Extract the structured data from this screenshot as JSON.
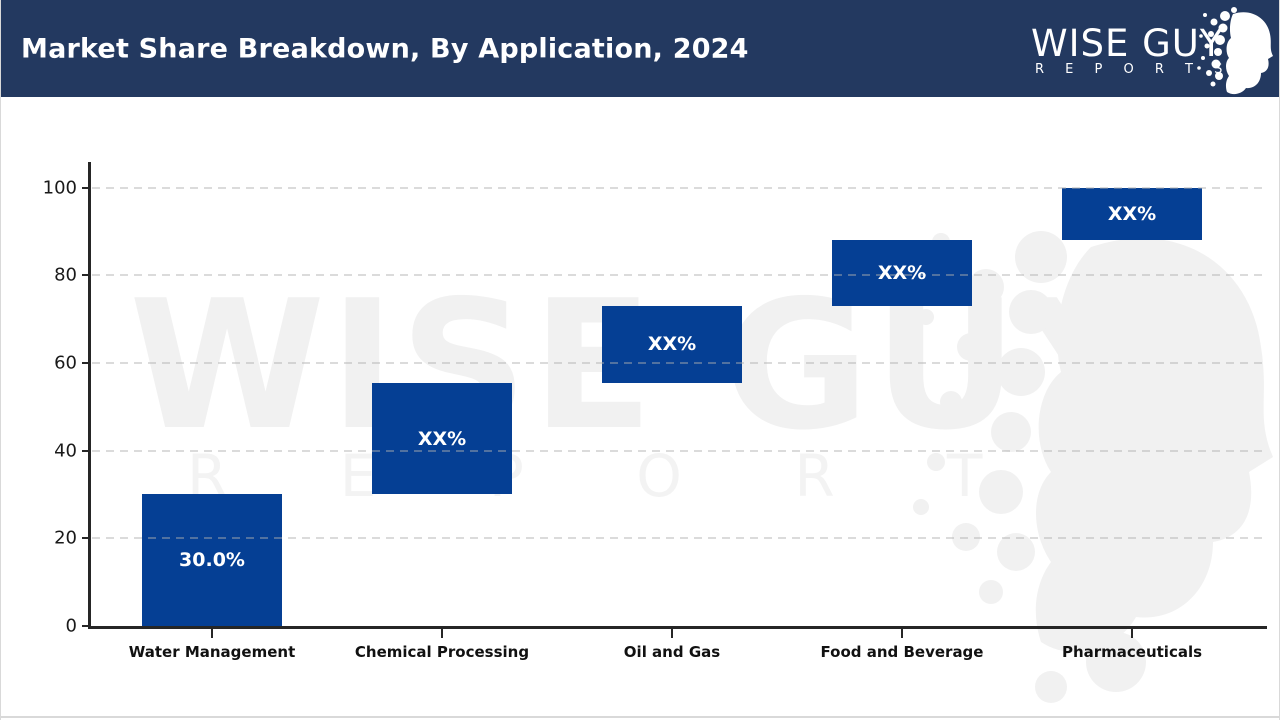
{
  "header": {
    "title": "Market Share Breakdown, By Application, 2024",
    "logo": {
      "line1": "WISE GUY",
      "line2": "R E P O R T S"
    }
  },
  "watermark": {
    "line1": "WISE GUY",
    "line2": "R E P O R T S"
  },
  "chart_data": {
    "type": "bar",
    "subtype": "waterfall",
    "title": "Market Share Breakdown, By Application, 2024",
    "categories": [
      "Water Management",
      "Chemical Processing",
      "Oil and Gas",
      "Food and Beverage",
      "Pharmaceuticals"
    ],
    "bar_labels": [
      "30.0%",
      "XX%",
      "XX%",
      "XX%",
      "XX%"
    ],
    "values": [
      30,
      25.5,
      17.5,
      15,
      12
    ],
    "segments": [
      {
        "start": 0,
        "end": 30
      },
      {
        "start": 30,
        "end": 55.5
      },
      {
        "start": 55.5,
        "end": 73
      },
      {
        "start": 73,
        "end": 88
      },
      {
        "start": 88,
        "end": 100
      }
    ],
    "xlabel": "",
    "ylabel": "",
    "ylim": [
      0,
      100
    ],
    "yticks": [
      0,
      20,
      40,
      60,
      80,
      100
    ],
    "grid": "horizontal-dashed",
    "legend": "none"
  },
  "colors": {
    "header_bg": "#233960",
    "bar_fill": "#053F94",
    "bar_label_text": "#ffffff",
    "axis": "#262626",
    "tick_text": "#1a1a1a",
    "watermark": "#f1f1f1",
    "background": "#ffffff"
  }
}
